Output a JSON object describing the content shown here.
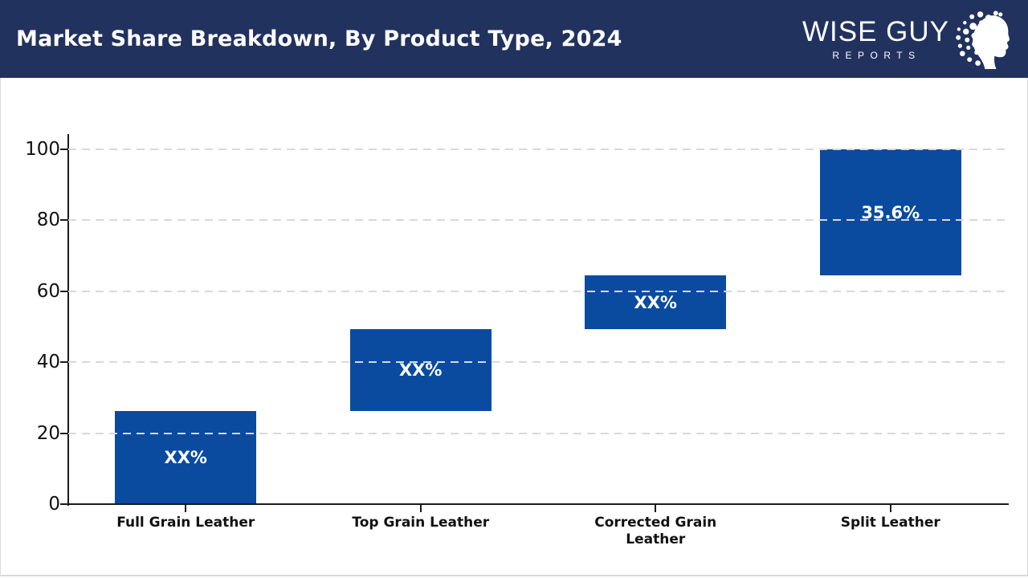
{
  "header": {
    "title": "Market Share Breakdown, By Product Type, 2024",
    "brand": {
      "name": "WISE GUY",
      "subtitle": "REPORTS"
    }
  },
  "watermark": {
    "line1": "WISE GUY",
    "line2": "REPORTS"
  },
  "colors": {
    "header_bg": "#22325e",
    "bar": "#0a4ba0",
    "bar_label": "#ffffff",
    "gridline": "#d9d9d9",
    "axis": "#1a1a1a",
    "watermark": "#f1f1f4"
  },
  "chart_data": {
    "type": "bar",
    "subtype": "floating_stacked_segments",
    "title": "Market Share Breakdown, By Product Type, 2024",
    "categories": [
      "Full Grain Leather",
      "Top Grain Leather",
      "Corrected Grain Leather",
      "Split Leather"
    ],
    "segments": [
      {
        "category": "Full Grain Leather",
        "start": 0,
        "end": 26.3,
        "label": "XX%"
      },
      {
        "category": "Top Grain Leather",
        "start": 26.3,
        "end": 49.3,
        "label": "XX%"
      },
      {
        "category": "Corrected Grain Leather",
        "start": 49.3,
        "end": 64.4,
        "label": "XX%"
      },
      {
        "category": "Split Leather",
        "start": 64.4,
        "end": 100,
        "label": "35.6%",
        "value": 35.6
      }
    ],
    "xlabel": "",
    "ylabel": "",
    "ylim": [
      0,
      100
    ],
    "yticks": [
      0,
      20,
      40,
      60,
      80,
      100
    ],
    "grid": "horizontal_dashed_over_bars",
    "legend": "none"
  }
}
